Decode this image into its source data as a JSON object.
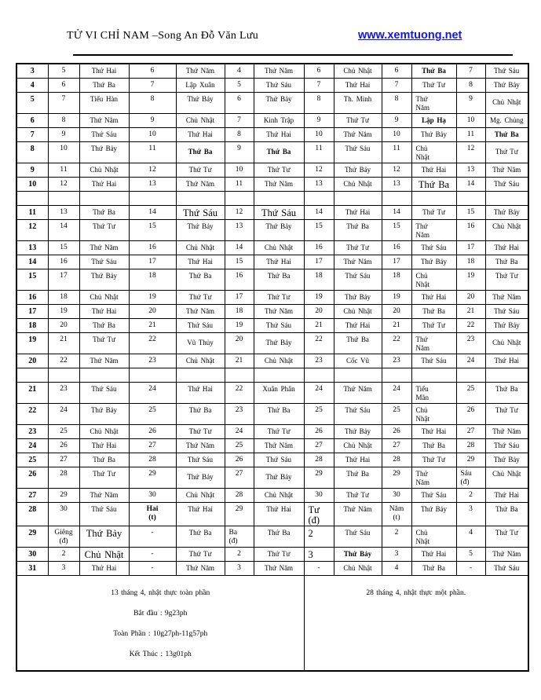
{
  "header": {
    "title": "TỬ VI CHỈ NAM –Song An Đỗ Văn Lưu",
    "url": "www.xemtuong.net",
    "url_color": "#1414ee"
  },
  "table": {
    "rows": [
      {
        "type": "normal",
        "cells": [
          "3",
          "5",
          "Thứ Hai",
          "6",
          "Thứ Năm",
          "4",
          "Thứ Năm",
          "6",
          "Chủ Nhật",
          "6",
          {
            "t": "Thứ Ba",
            "b": true
          },
          "7",
          "Thứ Sáu"
        ]
      },
      {
        "type": "normal",
        "cells": [
          "4",
          "6",
          "Thứ Ba",
          "7",
          "Lập Xuân",
          "5",
          "Thứ Sáu",
          "7",
          "Thứ Hai",
          "7",
          "Thứ Tư",
          "8",
          "Thứ Bảy"
        ]
      },
      {
        "type": "tall",
        "cells": [
          "5",
          "7",
          "Tiểu Hàn",
          "8",
          "Thứ Bảy",
          "6",
          "Thứ Bảy",
          "8",
          "Th. Minh",
          "8",
          {
            "t": "Thứ\nNăm",
            "left": true
          },
          "9",
          {
            "t": "Chủ Nhật",
            "vm": true
          }
        ]
      },
      {
        "type": "normal",
        "cells": [
          "6",
          "8",
          "Thứ Năm",
          "9",
          "Chủ Nhật",
          "7",
          "Kinh Trập",
          "9",
          "Thứ Tư",
          "9",
          {
            "t": "Lập Hạ",
            "b": true
          },
          "10",
          "Mg. Chủng"
        ]
      },
      {
        "type": "normal",
        "cells": [
          "7",
          "9",
          "Thứ Sáu",
          "10",
          "Thứ Hai",
          "8",
          "Thứ Hai",
          "10",
          "Thứ Năm",
          "10",
          "Thứ Bảy",
          "11",
          {
            "t": "Thứ Ba",
            "b": true
          }
        ]
      },
      {
        "type": "tall",
        "cells": [
          "8",
          "10",
          "Thứ Bảy",
          "11",
          {
            "t": "Thứ Ba",
            "b": true,
            "vm": true
          },
          "9",
          {
            "t": "Thứ Ba",
            "b": true,
            "vm": true
          },
          "11",
          "Thứ Sáu",
          "11",
          {
            "t": "Chủ\nNhật",
            "left": true
          },
          "12",
          {
            "t": "Thứ Tư",
            "vm": true
          }
        ]
      },
      {
        "type": "normal",
        "cells": [
          "9",
          "11",
          "Chủ Nhật",
          "12",
          "Thứ Tư",
          "10",
          "Thứ Tư",
          "12",
          "Thứ Bảy",
          "12",
          "Thứ Hai",
          "13",
          "Thứ Năm"
        ]
      },
      {
        "type": "normal",
        "cells": [
          "10",
          "12",
          "Thứ Hai",
          "13",
          "Thứ Năm",
          "11",
          "Thứ Năm",
          "13",
          "Chủ Nhật",
          "13",
          {
            "t": "Thứ Ba",
            "big": true
          },
          "14",
          "Thứ Sáu"
        ]
      },
      {
        "type": "empty",
        "cells": []
      },
      {
        "type": "normal",
        "cells": [
          "11",
          "13",
          "Thứ Ba",
          "14",
          {
            "t": "Thứ Sáu",
            "big": true
          },
          "12",
          {
            "t": "Thứ Sáu",
            "big": true
          },
          "14",
          "Thứ Hai",
          "14",
          "Thứ Tư",
          "15",
          "Thứ Bảy"
        ]
      },
      {
        "type": "tall",
        "cells": [
          "12",
          "14",
          "Thứ Tư",
          "15",
          "Thứ Bảy",
          "13",
          "Thứ Bảy",
          "15",
          "Thứ Ba",
          "15",
          {
            "t": "Thứ\nNăm",
            "left": true
          },
          "16",
          "Chủ Nhật"
        ]
      },
      {
        "type": "normal",
        "cells": [
          "13",
          "15",
          "Thứ Năm",
          "16",
          "Chủ Nhật",
          "14",
          "Chủ Nhật",
          "16",
          "Thứ Tư",
          "16",
          "Thứ Sáu",
          "17",
          "Thứ Hai"
        ]
      },
      {
        "type": "normal",
        "cells": [
          "14",
          "16",
          "Thứ Sáu",
          "17",
          "Thứ Hai",
          "15",
          "Thứ Hai",
          "17",
          "Thứ Năm",
          "17",
          "Thứ Bảy",
          "18",
          "Thứ Ba"
        ]
      },
      {
        "type": "tall",
        "cells": [
          "15",
          "17",
          "Thứ Bảy",
          "18",
          "Thứ Ba",
          "16",
          "Thứ Ba",
          "18",
          "Thứ Sáu",
          "18",
          {
            "t": "Chủ\nNhật",
            "left": true
          },
          "19",
          "Thứ Tư"
        ]
      },
      {
        "type": "normal",
        "cells": [
          "16",
          "18",
          "Chủ Nhật",
          "19",
          "Thứ Tư",
          "17",
          "Thứ Tư",
          "19",
          "Thứ Bảy",
          "19",
          "Thứ Hai",
          "20",
          "Thứ Năm"
        ]
      },
      {
        "type": "normal",
        "cells": [
          "17",
          "19",
          "Thứ Hai",
          "20",
          "Thứ Năm",
          "18",
          "Thứ Năm",
          "20",
          "Chủ Nhật",
          "20",
          "Thứ Ba",
          "21",
          "Thứ Sáu"
        ]
      },
      {
        "type": "normal",
        "cells": [
          "18",
          "20",
          "Thứ Ba",
          "21",
          "Thứ Sáu",
          "19",
          "Thứ Sáu",
          "21",
          "Thứ Hai",
          "21",
          "Thứ Tư",
          "22",
          "Thứ Bảy"
        ]
      },
      {
        "type": "tall",
        "cells": [
          "19",
          "21",
          "Thứ Tư",
          "22",
          {
            "t": "Vũ Thủy",
            "vm": true
          },
          "20",
          {
            "t": "Thứ Bảy",
            "vm": true
          },
          "22",
          "Thứ Ba",
          "22",
          {
            "t": "Thứ\nNăm",
            "left": true
          },
          "23",
          {
            "t": "Chủ Nhật",
            "vm": true
          }
        ]
      },
      {
        "type": "normal",
        "cells": [
          "20",
          "22",
          "Thứ Năm",
          "23",
          "Chủ Nhật",
          "21",
          "Chủ Nhật",
          "23",
          "Cốc Vũ",
          "23",
          "Thứ Sáu",
          "24",
          "Thứ Hai"
        ]
      },
      {
        "type": "empty",
        "cells": []
      },
      {
        "type": "tall",
        "cells": [
          "21",
          "23",
          "Thứ Sáu",
          "24",
          "Thứ Hai",
          "22",
          "Xuân Phân",
          "24",
          "Thứ Năm",
          "24",
          {
            "t": "Tiểu\nMãn",
            "left": true
          },
          "25",
          "Thứ Ba"
        ]
      },
      {
        "type": "tall",
        "cells": [
          "22",
          "24",
          "Thứ Bảy",
          "25",
          "Thứ Ba",
          "23",
          "Thứ Ba",
          "25",
          "Thứ Sáu",
          "25",
          {
            "t": "Chủ\nNhật",
            "left": true
          },
          "26",
          "Thứ Tư"
        ]
      },
      {
        "type": "normal",
        "cells": [
          "23",
          "25",
          "Chủ Nhật",
          "26",
          "Thứ Tư",
          "24",
          "Thứ Tư",
          "26",
          "Thứ Bảy",
          "26",
          "Thứ Hai",
          "27",
          "Thứ Năm"
        ]
      },
      {
        "type": "normal",
        "cells": [
          "24",
          "26",
          "Thứ Hai",
          "27",
          "Thứ Năm",
          "25",
          "Thứ Năm",
          "27",
          "Chủ Nhật",
          "27",
          "Thứ Ba",
          "28",
          "Thứ Sáu"
        ]
      },
      {
        "type": "normal",
        "cells": [
          "25",
          "27",
          "Thứ Ba",
          "28",
          "Thứ Sáu",
          "26",
          "Thứ Sáu",
          "28",
          "Thứ Hai",
          "28",
          "Thứ Tư",
          "29",
          "Thứ Bảy"
        ]
      },
      {
        "type": "tall",
        "cells": [
          "26",
          "28",
          "Thứ Tư",
          "29",
          {
            "t": "Thứ Bảy",
            "vm": true
          },
          "27",
          {
            "t": "Thứ Bảy",
            "vm": true
          },
          "29",
          "Thứ Ba",
          "29",
          {
            "t": "Thứ\nNăm",
            "left": true
          },
          {
            "t": "Sáu\n(đ)",
            "left": true
          },
          "Chủ Nhật"
        ]
      },
      {
        "type": "normal",
        "cells": [
          "27",
          "29",
          "Thứ Năm",
          "30",
          "Chủ Nhật",
          "28",
          "Chủ Nhật",
          "30",
          "Thứ Tư",
          "30",
          "Thứ Sáu",
          "2",
          "Thứ Hai"
        ]
      },
      {
        "type": "tall",
        "cells": [
          "28",
          "30",
          "Thứ Sáu",
          {
            "t": "Hai\n(t)",
            "b": true
          },
          "Thứ Hai",
          "29",
          "Thứ Hai",
          {
            "t": "Tư\n(đ)",
            "big": true,
            "left": true
          },
          "Thứ Năm",
          {
            "t": "Năm\n(t)"
          },
          "Thứ Bảy",
          "3",
          "Thứ Ba"
        ]
      },
      {
        "type": "tall",
        "cells": [
          "29",
          {
            "t": "Giêng\n(đ)"
          },
          {
            "t": "Thứ Bảy",
            "big": true
          },
          "-",
          "Thứ Ba",
          {
            "t": "Ba\n(đ)",
            "left": true
          },
          "Thứ Ba",
          {
            "t": "2",
            "big": true,
            "left": true
          },
          "Thứ Sáu",
          "2",
          {
            "t": "Chủ\nNhật",
            "left": true
          },
          "4",
          "Thứ Tư"
        ]
      },
      {
        "type": "normal",
        "cells": [
          "30",
          "2",
          {
            "t": "Chủ Nhật",
            "big": true
          },
          "-",
          "Thứ Tư",
          "2",
          "Thứ Tư",
          {
            "t": "3",
            "big": true,
            "left": true
          },
          {
            "t": "Thứ Bảy",
            "b": true
          },
          "3",
          "Thứ Hai",
          "5",
          "Thứ Năm"
        ]
      },
      {
        "type": "normal",
        "cells": [
          "31",
          "3",
          "Thứ Hai",
          "-",
          "Thứ Năm",
          "3",
          "Thứ Năm",
          "-",
          "Chủ Nhật",
          "4",
          "Thứ Ba",
          "-",
          "Thứ Sáu"
        ]
      }
    ]
  },
  "footer": {
    "left_lines": [
      "13 tháng 4, nhật thực toàn phần",
      "Bắt đầu : 9g23ph",
      "Toàn Phần : 10g27ph-11g57ph",
      "Kết Thúc : 13g01ph"
    ],
    "right": "28 tháng 4, nhật thực một phần."
  }
}
